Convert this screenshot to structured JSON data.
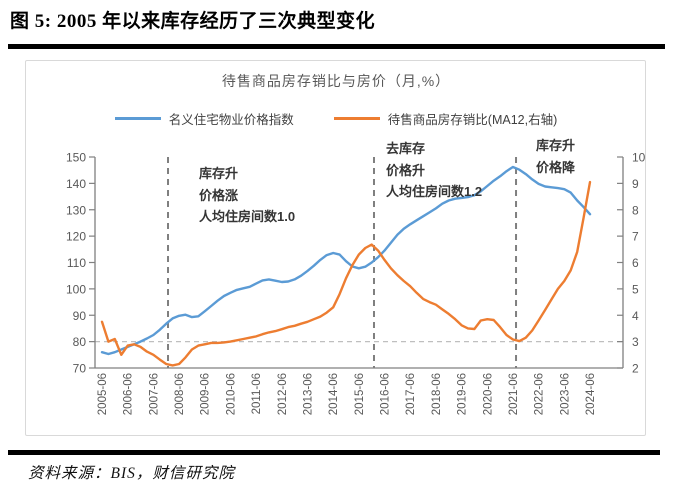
{
  "page": {
    "title": "图 5:  2005 年以来库存经历了三次典型变化",
    "source": "资料来源：BIS，财信研究院"
  },
  "chart": {
    "title": "待售商品房存销比与房价（月,%）",
    "legend": [
      {
        "label": "名义住宅物业价格指数",
        "color": "#5B9BD5"
      },
      {
        "label": "待售商品房存销比(MA12,右轴)",
        "color": "#ED7D31"
      }
    ]
  },
  "chart_data": {
    "type": "line",
    "title": "待售商品房存销比与房价（月,%）",
    "x_tick_labels": [
      "2005-06",
      "2006-06",
      "2007-06",
      "2008-06",
      "2009-06",
      "2010-06",
      "2011-06",
      "2012-06",
      "2013-06",
      "2014-06",
      "2015-06",
      "2016-06",
      "2017-06",
      "2018-06",
      "2019-06",
      "2020-06",
      "2021-06",
      "2022-06",
      "2023-06",
      "2024-06"
    ],
    "x_range_years": [
      2005.5,
      2024.5
    ],
    "left_axis": {
      "label": "名义住宅物业价格指数",
      "min": 70,
      "max": 150,
      "ticks": [
        70,
        80,
        90,
        100,
        110,
        120,
        130,
        140,
        150
      ]
    },
    "right_axis": {
      "label": "待售商品房存销比(MA12,右轴)",
      "min": 2,
      "max": 10,
      "ticks": [
        2,
        3,
        4,
        5,
        6,
        7,
        8,
        9,
        10
      ]
    },
    "grid": "off",
    "legend_position": "top-center",
    "reference_lines": {
      "horizontal_dashed": {
        "axis": "left",
        "value": 80,
        "right_axis_equivalent": 3
      },
      "vertical_dashed_x_years": [
        2008.07,
        2016.09,
        2021.62
      ]
    },
    "annotations": [
      {
        "lines": [
          "库存升",
          "价格涨",
          "人均住房间数1.0"
        ],
        "x_year": 2009.3,
        "anchor": "after-first-dashed-line"
      },
      {
        "lines": [
          "去库存",
          "价格升",
          "人均住房间数1.2"
        ],
        "x_year": 2016.6,
        "anchor": "after-second-dashed-line"
      },
      {
        "lines": [
          "库存升",
          "价格降"
        ],
        "x_year": 2022.4,
        "anchor": "after-third-dashed-line"
      }
    ],
    "series": [
      {
        "name": "名义住宅物业价格指数",
        "axis": "left",
        "color": "#5B9BD5",
        "points": [
          [
            2005.5,
            76.0
          ],
          [
            2005.75,
            75.3
          ],
          [
            2006.0,
            76.0
          ],
          [
            2006.25,
            77.0
          ],
          [
            2006.5,
            78.0
          ],
          [
            2006.75,
            79.0
          ],
          [
            2007.0,
            80.0
          ],
          [
            2007.25,
            81.2
          ],
          [
            2007.5,
            82.5
          ],
          [
            2007.75,
            84.5
          ],
          [
            2008.0,
            86.8
          ],
          [
            2008.25,
            88.8
          ],
          [
            2008.5,
            89.8
          ],
          [
            2008.75,
            90.2
          ],
          [
            2009.0,
            89.3
          ],
          [
            2009.25,
            89.6
          ],
          [
            2009.5,
            91.5
          ],
          [
            2009.75,
            93.5
          ],
          [
            2010.0,
            95.5
          ],
          [
            2010.25,
            97.3
          ],
          [
            2010.5,
            98.5
          ],
          [
            2010.75,
            99.6
          ],
          [
            2011.0,
            100.2
          ],
          [
            2011.25,
            100.8
          ],
          [
            2011.5,
            102.0
          ],
          [
            2011.75,
            103.2
          ],
          [
            2012.0,
            103.6
          ],
          [
            2012.25,
            103.1
          ],
          [
            2012.5,
            102.6
          ],
          [
            2012.75,
            102.8
          ],
          [
            2013.0,
            103.6
          ],
          [
            2013.25,
            105.0
          ],
          [
            2013.5,
            106.8
          ],
          [
            2013.75,
            108.8
          ],
          [
            2014.0,
            111.0
          ],
          [
            2014.25,
            112.8
          ],
          [
            2014.5,
            113.6
          ],
          [
            2014.75,
            113.0
          ],
          [
            2015.0,
            110.5
          ],
          [
            2015.25,
            108.5
          ],
          [
            2015.5,
            107.8
          ],
          [
            2015.75,
            108.4
          ],
          [
            2016.0,
            110.0
          ],
          [
            2016.25,
            112.0
          ],
          [
            2016.5,
            114.5
          ],
          [
            2016.75,
            117.5
          ],
          [
            2017.0,
            120.5
          ],
          [
            2017.25,
            122.8
          ],
          [
            2017.5,
            124.5
          ],
          [
            2017.75,
            126.0
          ],
          [
            2018.0,
            127.5
          ],
          [
            2018.25,
            129.0
          ],
          [
            2018.5,
            130.5
          ],
          [
            2018.75,
            132.3
          ],
          [
            2019.0,
            133.5
          ],
          [
            2019.25,
            134.2
          ],
          [
            2019.5,
            134.5
          ],
          [
            2019.75,
            134.8
          ],
          [
            2020.0,
            135.5
          ],
          [
            2020.25,
            137.0
          ],
          [
            2020.5,
            139.0
          ],
          [
            2020.75,
            141.0
          ],
          [
            2021.0,
            142.7
          ],
          [
            2021.25,
            144.6
          ],
          [
            2021.5,
            146.2
          ],
          [
            2021.75,
            145.2
          ],
          [
            2022.0,
            143.5
          ],
          [
            2022.25,
            141.5
          ],
          [
            2022.5,
            139.8
          ],
          [
            2022.75,
            138.8
          ],
          [
            2023.0,
            138.5
          ],
          [
            2023.25,
            138.2
          ],
          [
            2023.5,
            137.8
          ],
          [
            2023.75,
            136.5
          ],
          [
            2024.0,
            133.5
          ],
          [
            2024.25,
            131.0
          ],
          [
            2024.5,
            128.3
          ]
        ]
      },
      {
        "name": "待售商品房存销比(MA12,右轴)",
        "axis": "right",
        "color": "#ED7D31",
        "points": [
          [
            2005.5,
            3.75
          ],
          [
            2005.75,
            3.0
          ],
          [
            2006.0,
            3.1
          ],
          [
            2006.25,
            2.5
          ],
          [
            2006.5,
            2.85
          ],
          [
            2006.75,
            2.9
          ],
          [
            2007.0,
            2.8
          ],
          [
            2007.25,
            2.62
          ],
          [
            2007.5,
            2.5
          ],
          [
            2007.75,
            2.32
          ],
          [
            2008.0,
            2.15
          ],
          [
            2008.25,
            2.1
          ],
          [
            2008.5,
            2.15
          ],
          [
            2008.75,
            2.4
          ],
          [
            2009.0,
            2.7
          ],
          [
            2009.25,
            2.85
          ],
          [
            2009.5,
            2.9
          ],
          [
            2009.75,
            2.95
          ],
          [
            2010.0,
            2.95
          ],
          [
            2010.25,
            2.97
          ],
          [
            2010.5,
            3.0
          ],
          [
            2010.75,
            3.05
          ],
          [
            2011.0,
            3.1
          ],
          [
            2011.25,
            3.15
          ],
          [
            2011.5,
            3.2
          ],
          [
            2011.75,
            3.28
          ],
          [
            2012.0,
            3.35
          ],
          [
            2012.25,
            3.4
          ],
          [
            2012.5,
            3.47
          ],
          [
            2012.75,
            3.55
          ],
          [
            2013.0,
            3.6
          ],
          [
            2013.25,
            3.68
          ],
          [
            2013.5,
            3.75
          ],
          [
            2013.75,
            3.85
          ],
          [
            2014.0,
            3.95
          ],
          [
            2014.25,
            4.1
          ],
          [
            2014.5,
            4.3
          ],
          [
            2014.75,
            4.8
          ],
          [
            2015.0,
            5.4
          ],
          [
            2015.25,
            5.9
          ],
          [
            2015.5,
            6.3
          ],
          [
            2015.75,
            6.55
          ],
          [
            2016.0,
            6.68
          ],
          [
            2016.25,
            6.45
          ],
          [
            2016.5,
            6.1
          ],
          [
            2016.75,
            5.78
          ],
          [
            2017.0,
            5.52
          ],
          [
            2017.25,
            5.3
          ],
          [
            2017.5,
            5.1
          ],
          [
            2017.75,
            4.85
          ],
          [
            2018.0,
            4.62
          ],
          [
            2018.25,
            4.5
          ],
          [
            2018.5,
            4.4
          ],
          [
            2018.75,
            4.22
          ],
          [
            2019.0,
            4.05
          ],
          [
            2019.25,
            3.85
          ],
          [
            2019.5,
            3.62
          ],
          [
            2019.75,
            3.5
          ],
          [
            2020.0,
            3.48
          ],
          [
            2020.25,
            3.8
          ],
          [
            2020.5,
            3.85
          ],
          [
            2020.75,
            3.82
          ],
          [
            2021.0,
            3.55
          ],
          [
            2021.25,
            3.25
          ],
          [
            2021.5,
            3.08
          ],
          [
            2021.75,
            3.02
          ],
          [
            2022.0,
            3.15
          ],
          [
            2022.25,
            3.42
          ],
          [
            2022.5,
            3.8
          ],
          [
            2022.75,
            4.2
          ],
          [
            2023.0,
            4.6
          ],
          [
            2023.25,
            5.0
          ],
          [
            2023.5,
            5.3
          ],
          [
            2023.75,
            5.7
          ],
          [
            2024.0,
            6.4
          ],
          [
            2024.25,
            7.7
          ],
          [
            2024.5,
            9.05
          ]
        ]
      }
    ]
  }
}
